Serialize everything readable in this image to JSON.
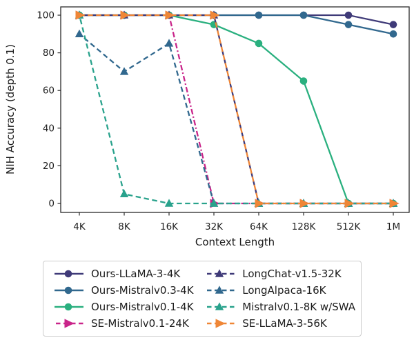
{
  "figure": {
    "background": "#ffffff",
    "axis_color": "#2a2a2a",
    "tick_label_color": "#1f1f1f",
    "legend_border_color": "#cccccc"
  },
  "chart_data": {
    "type": "line",
    "title": "",
    "xlabel": "Context Length",
    "ylabel": "NIH Accuracy (depth 0.1)",
    "categories": [
      "4K",
      "8K",
      "16K",
      "32K",
      "64K",
      "128K",
      "512K",
      "1M"
    ],
    "yticks": [
      0,
      20,
      40,
      60,
      80,
      100
    ],
    "ylim": [
      0,
      100
    ],
    "grid": false,
    "legend_position": "bottom",
    "series": [
      {
        "name": "Ours-LLaMA-3-4K",
        "color": "#3f3a78",
        "line": "solid",
        "marker": "circle",
        "dashoffset": 0,
        "values": [
          100,
          100,
          100,
          100,
          100,
          100,
          100,
          95
        ]
      },
      {
        "name": "Ours-Mistralv0.3-4K",
        "color": "#31688e",
        "line": "solid",
        "marker": "circle",
        "dashoffset": 0,
        "values": [
          100,
          100,
          100,
          100,
          100,
          100,
          95,
          90
        ]
      },
      {
        "name": "Ours-Mistralv0.1-4K",
        "color": "#2ab07f",
        "line": "solid",
        "marker": "circle",
        "dashoffset": 0,
        "values": [
          100,
          100,
          100,
          95,
          85,
          65,
          0,
          0
        ]
      },
      {
        "name": "SE-Mistralv0.1-24K",
        "color": "#c9258a",
        "line": "dashdot",
        "marker": "arrow",
        "dashoffset": 9,
        "values": [
          100,
          100,
          100,
          0,
          0,
          0,
          0,
          0
        ]
      },
      {
        "name": "LongChat-v1.5-32K",
        "color": "#3f3a78",
        "line": "dashed",
        "marker": "triangle",
        "dashoffset": 6,
        "values": [
          100,
          100,
          100,
          100,
          0,
          0,
          0,
          0
        ]
      },
      {
        "name": "LongAlpaca-16K",
        "color": "#31688e",
        "line": "dashed",
        "marker": "triangle",
        "dashoffset": 3,
        "values": [
          90,
          70,
          85,
          0,
          0,
          0,
          0,
          0
        ]
      },
      {
        "name": "Mistralv0.1-8K w/SWA",
        "color": "#29a28c",
        "line": "dashed",
        "marker": "triangle",
        "dashoffset": 6,
        "values": [
          100,
          5,
          0,
          0,
          0,
          0,
          0,
          0
        ]
      },
      {
        "name": "SE-LLaMA-3-56K",
        "color": "#ef8636",
        "line": "dashed",
        "marker": "arrow",
        "dashoffset": 0,
        "values": [
          100,
          100,
          100,
          100,
          0,
          0,
          0,
          0
        ]
      }
    ],
    "legend_columns": [
      [
        0,
        1,
        2,
        3
      ],
      [
        4,
        5,
        6,
        7
      ]
    ]
  }
}
